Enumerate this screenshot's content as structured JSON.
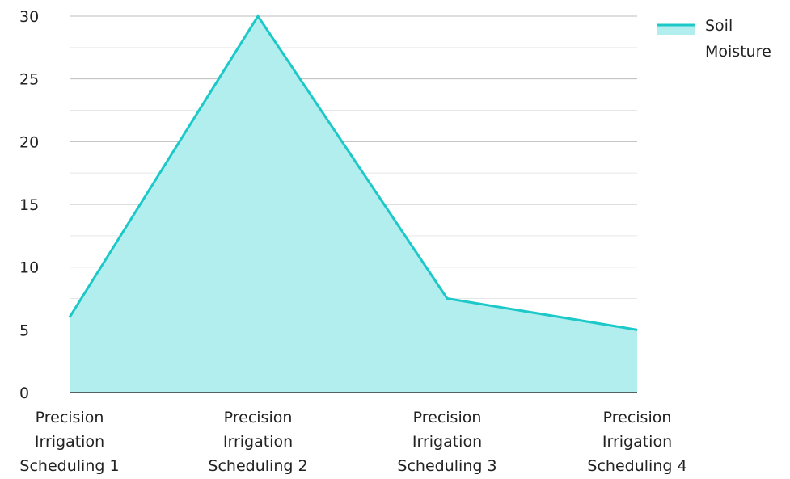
{
  "chart_data": {
    "type": "area",
    "categories": [
      [
        "Precision",
        "Irrigation",
        "Scheduling 1"
      ],
      [
        "Precision",
        "Irrigation",
        "Scheduling 2"
      ],
      [
        "Precision",
        "Irrigation",
        "Scheduling 3"
      ],
      [
        "Precision",
        "Irrigation",
        "Scheduling 4"
      ]
    ],
    "series": [
      {
        "name": "Soil Moisture",
        "values": [
          6,
          30,
          7.5,
          5
        ]
      }
    ],
    "yticks": [
      "0",
      "5",
      "10",
      "15",
      "20",
      "25",
      "30"
    ],
    "ylim": [
      0,
      30
    ],
    "grid": true,
    "legend": {
      "position": "top-right",
      "lines": [
        "Soil",
        "Moisture"
      ]
    },
    "colors": {
      "line": "#1cc8c8",
      "fill": "#b2eeee",
      "grid_major": "#bdbdbd",
      "grid_minor": "#e6e6e6",
      "axis": "#333333"
    }
  }
}
